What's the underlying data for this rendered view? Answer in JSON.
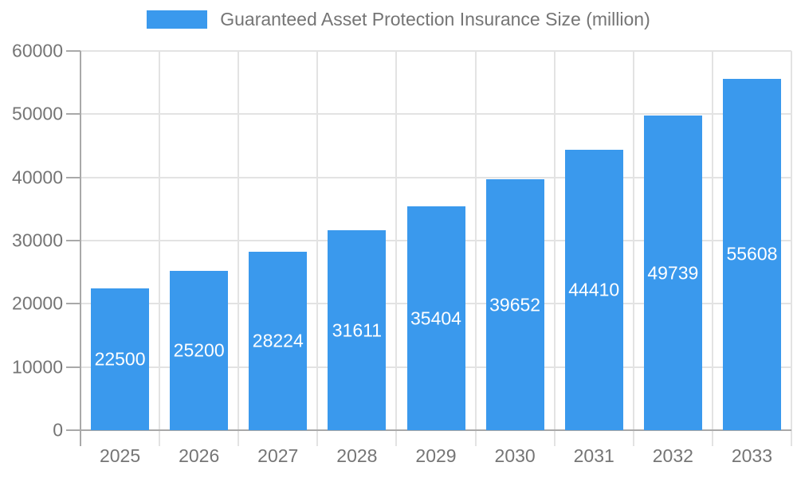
{
  "chart_data": {
    "type": "bar",
    "legend": [
      "Guaranteed Asset Protection Insurance Size (million)"
    ],
    "legend_position": "top-center",
    "categories": [
      "2025",
      "2026",
      "2027",
      "2028",
      "2029",
      "2030",
      "2031",
      "2032",
      "2033"
    ],
    "values": [
      22500,
      25200,
      28224,
      31611,
      35404,
      39652,
      44410,
      49739,
      55608
    ],
    "ylim": [
      0,
      60000
    ],
    "yticks": [
      0,
      10000,
      20000,
      30000,
      40000,
      50000,
      60000
    ],
    "grid": true,
    "value_labels": "inside-center",
    "colors": {
      "bar": "#3a99ed",
      "value_label": "#ffffff",
      "axis_line": "#a9a9a9",
      "grid_line": "#e3e3e3",
      "tick_label": "#757575",
      "legend_text": "#757575",
      "background": "#ffffff"
    }
  }
}
